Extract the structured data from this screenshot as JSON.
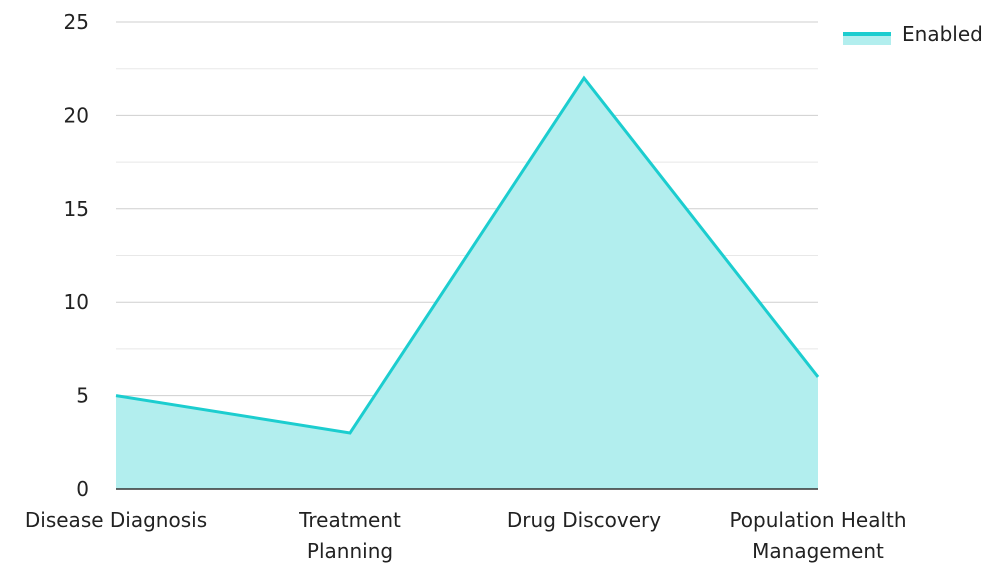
{
  "chart_data": {
    "type": "area",
    "categories": [
      "Disease Diagnosis",
      "Treatment Planning",
      "Drug Discovery",
      "Population Health Management"
    ],
    "category_lines": [
      [
        "Disease Diagnosis"
      ],
      [
        "Treatment",
        "Planning"
      ],
      [
        "Drug Discovery"
      ],
      [
        "Population Health",
        "Management"
      ]
    ],
    "series": [
      {
        "name": "Enabled",
        "values": [
          5,
          3,
          22,
          6
        ],
        "color": "#1ccdcf",
        "fill": "#b2eeee"
      }
    ],
    "ylim": [
      0,
      25
    ],
    "y_ticks": [
      "0",
      "5",
      "10",
      "15",
      "20",
      "25"
    ],
    "grid": true,
    "legend_position": "top-right",
    "xlabel": "",
    "ylabel": "",
    "title": ""
  }
}
